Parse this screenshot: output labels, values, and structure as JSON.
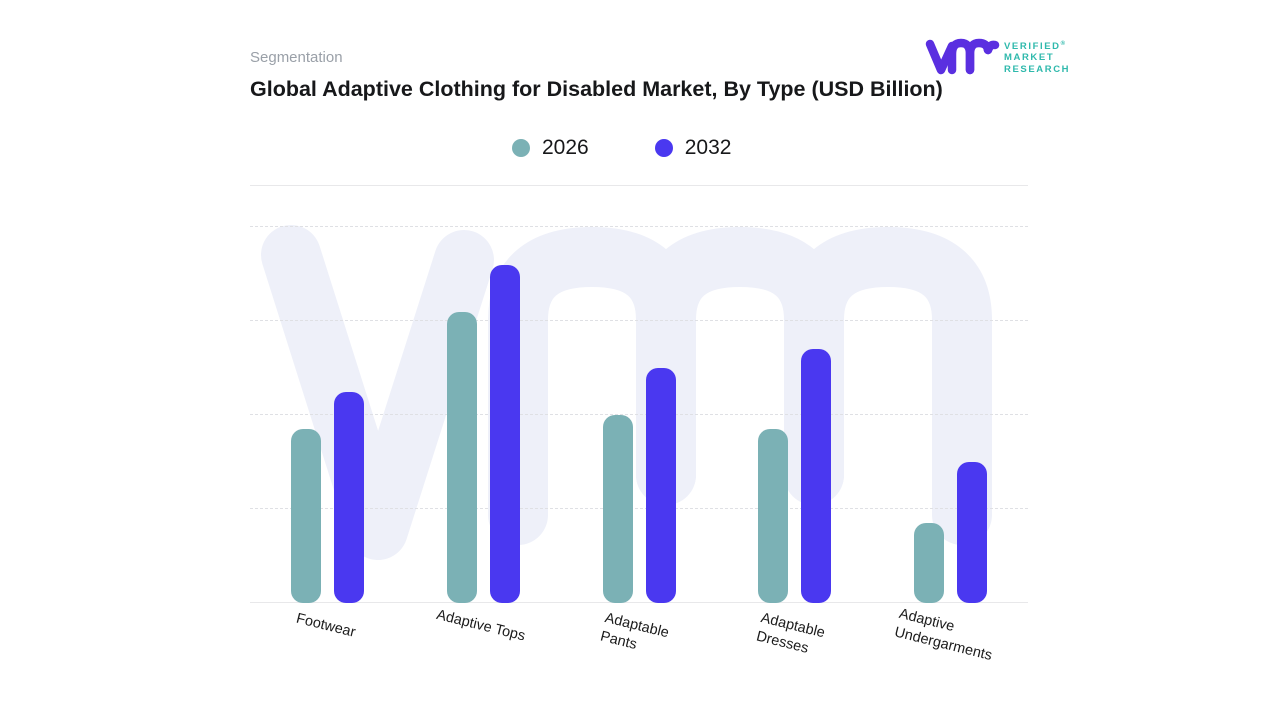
{
  "header": {
    "eyebrow": "Segmentation",
    "title": "Global Adaptive Clothing for Disabled Market, By Type (USD Billion)"
  },
  "logo": {
    "line1": "VERIFIED",
    "line2": "MARKET",
    "line3": "RESEARCH",
    "registered_mark": "®",
    "mark_color": "#5a2fe0",
    "text_color": "#2fb9ac"
  },
  "legend": {
    "items": [
      {
        "label": "2026",
        "color": "#7bb1b5"
      },
      {
        "label": "2032",
        "color": "#4a38f0"
      }
    ]
  },
  "chart_data": {
    "type": "bar",
    "title": "Global Adaptive Clothing for Disabled Market, By Type (USD Billion)",
    "categories": [
      "Footwear",
      "Adaptive Tops",
      "Adaptable\nPants",
      "Adaptable\nDresses",
      "Adaptive\nUndergarments"
    ],
    "series": [
      {
        "name": "2026",
        "color": "#7bb1b5",
        "values": [
          1.85,
          3.1,
          2.0,
          1.85,
          0.85
        ]
      },
      {
        "name": "2032",
        "color": "#4a38f0",
        "values": [
          2.25,
          3.6,
          2.5,
          2.7,
          1.5
        ]
      }
    ],
    "xlabel": "",
    "ylabel": "",
    "ylim": [
      0,
      4.45
    ],
    "gridlines": [
      1,
      2,
      3,
      4
    ],
    "grid_style": "dashed",
    "y_axis_labels_visible": false,
    "legend_position": "top-center",
    "x_label_rotation_deg": 14,
    "note": "Y axis is unlabeled in the source image; values are estimated in gridline units (1 unit = one gridline interval)."
  },
  "watermark": {
    "name": "vmr-watermark",
    "color": "#eef0f9"
  }
}
